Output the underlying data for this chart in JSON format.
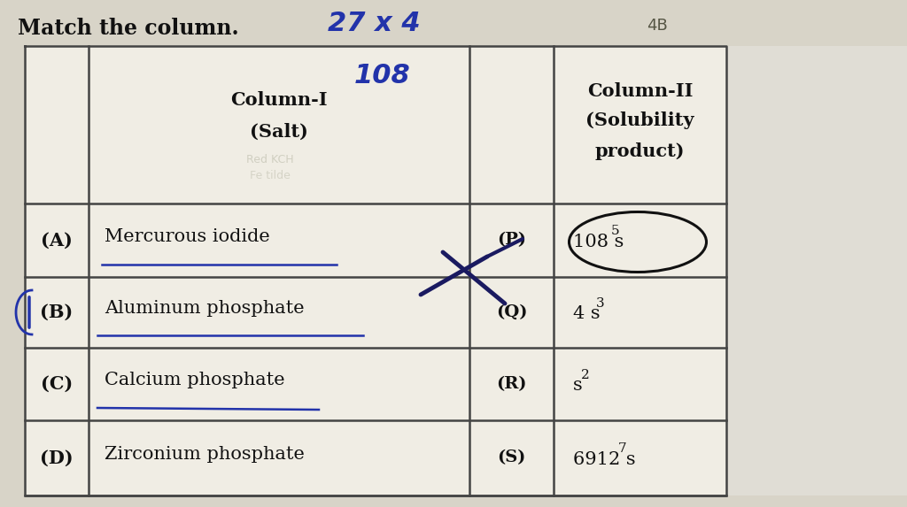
{
  "title": "Match the column.",
  "bg_color_top": "#ddd8cc",
  "bg_color_table": "#e8e4d8",
  "table_bg": "#f0ede5",
  "cell_bg": "#f2efe8",
  "text_color": "#111111",
  "font_size_title": 17,
  "font_size_header": 15,
  "font_size_cell": 15,
  "font_size_code": 14,
  "grid_color": "#444444",
  "col1_header": [
    "Column-I",
    "(Salt)"
  ],
  "col2_header": [
    "Column-II",
    "(Solubility",
    "product)"
  ],
  "col1_annotation": "108",
  "row_labels": [
    "(A)",
    "(B)",
    "(C)",
    "(D)"
  ],
  "col1_items": [
    "Mercurous iodide",
    "Aluminum phosphate",
    "Calcium phosphate",
    "Zirconium phosphate"
  ],
  "codes": [
    "(P)",
    "(Q)",
    "(R)",
    "(S)"
  ],
  "col2_bases": [
    "108 s",
    "4 s",
    "s",
    "6912 s"
  ],
  "col2_exps": [
    "5",
    "3",
    "2",
    "7"
  ],
  "underline_color": "#2233aa",
  "pen_color": "#1a1a60",
  "annotation_color": "#2233aa",
  "circle_color": "#111111",
  "handwrite_top": "27 x 4",
  "lw_grid": 1.8
}
